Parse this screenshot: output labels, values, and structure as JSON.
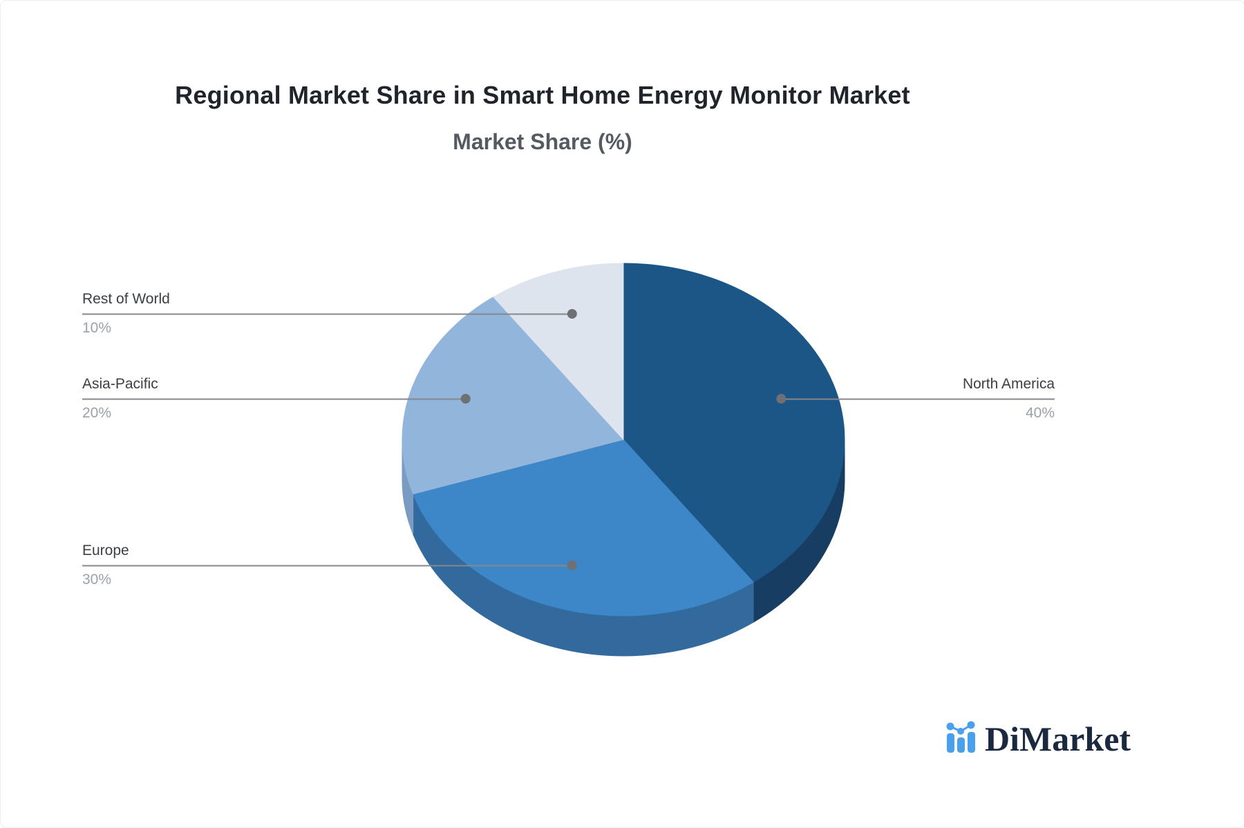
{
  "title": "Regional Market Share in Smart Home Energy Monitor Market",
  "subtitle": "Market Share (%)",
  "chart_data": {
    "type": "pie",
    "is3d": true,
    "title": "Regional Market Share in Smart Home Energy Monitor Market",
    "subtitle": "Market Share (%)",
    "unit": "%",
    "start_angle": "12-o-clock",
    "direction": "clockwise",
    "legend_position": "none",
    "labeling": "leader-lines-with-dots",
    "slices": [
      {
        "label": "North America",
        "value": 40,
        "display": "40%",
        "color": "#1b5687",
        "side_color": "#173d62",
        "label_side": "right"
      },
      {
        "label": "Europe",
        "value": 30,
        "display": "30%",
        "color": "#3d87c8",
        "side_color": "#326a9e",
        "label_side": "left"
      },
      {
        "label": "Asia-Pacific",
        "value": 20,
        "display": "20%",
        "color": "#92b5db",
        "side_color": "#7b9cc2",
        "label_side": "left"
      },
      {
        "label": "Rest of World",
        "value": 10,
        "display": "10%",
        "color": "#dde4ee",
        "side_color": "#c3cfdf",
        "label_side": "left"
      }
    ]
  },
  "branding": {
    "logo_text": "DiMarket",
    "logo_icon": "bar-line-chart-icon",
    "logo_blue": "#49a0ed",
    "logo_navy": "#1a2940"
  },
  "colors": {
    "background": "#ffffff",
    "title_text": "#20252b",
    "subtitle_text": "#545a62",
    "label_text": "#393f45",
    "value_text": "#9aa1a8",
    "leader_line": "#85878a",
    "leader_dot": "#6e7073"
  }
}
